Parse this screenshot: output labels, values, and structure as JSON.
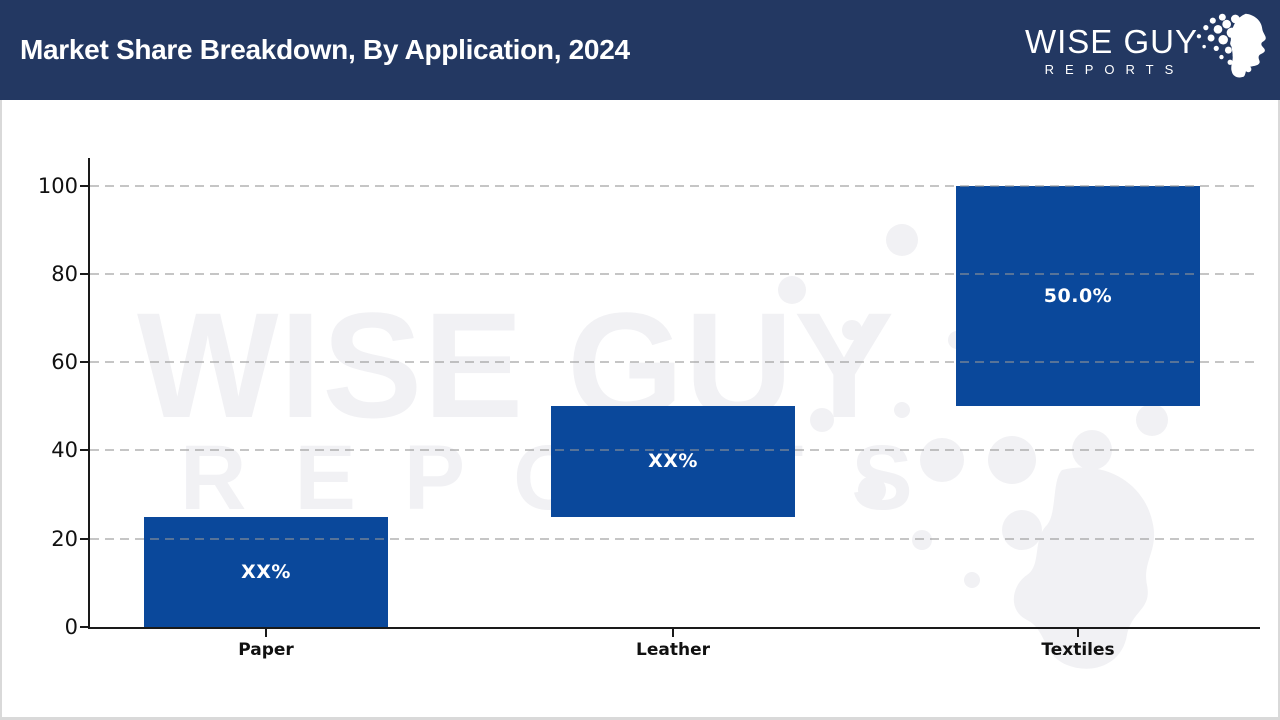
{
  "header": {
    "title": "Market Share Breakdown, By Application, 2024",
    "logo": {
      "brand": "WISE GUY",
      "sub": "REPORTS"
    }
  },
  "watermark": {
    "brand": "WISE GUY",
    "sub": "REPORTS"
  },
  "chart_data": {
    "type": "bar",
    "subtype": "waterfall-stacked",
    "title": "Market Share Breakdown, By Application, 2024",
    "categories": [
      "Paper",
      "Leather",
      "Textiles"
    ],
    "yticks": [
      0,
      20,
      40,
      60,
      80,
      100
    ],
    "ylim": [
      0,
      100
    ],
    "grid": "horizontal-dashed",
    "legend": "none",
    "series": [
      {
        "name": "Market Share",
        "segments": [
          {
            "category": "Paper",
            "start": 0,
            "end": 25,
            "value_label": "XX%"
          },
          {
            "category": "Leather",
            "start": 25,
            "end": 50,
            "value_label": "XX%"
          },
          {
            "category": "Textiles",
            "start": 50,
            "end": 100,
            "value_label": "50.0%"
          }
        ]
      }
    ],
    "colors": {
      "bar": "#0A489B",
      "bar_label": "#FFFFFF",
      "axis": "#1A1A1A",
      "grid_dash": "#C9C9C9"
    }
  },
  "colors": {
    "header_bg": "#233862",
    "panel_border": "#D9D9D9",
    "watermark": "#F1F1F4"
  }
}
